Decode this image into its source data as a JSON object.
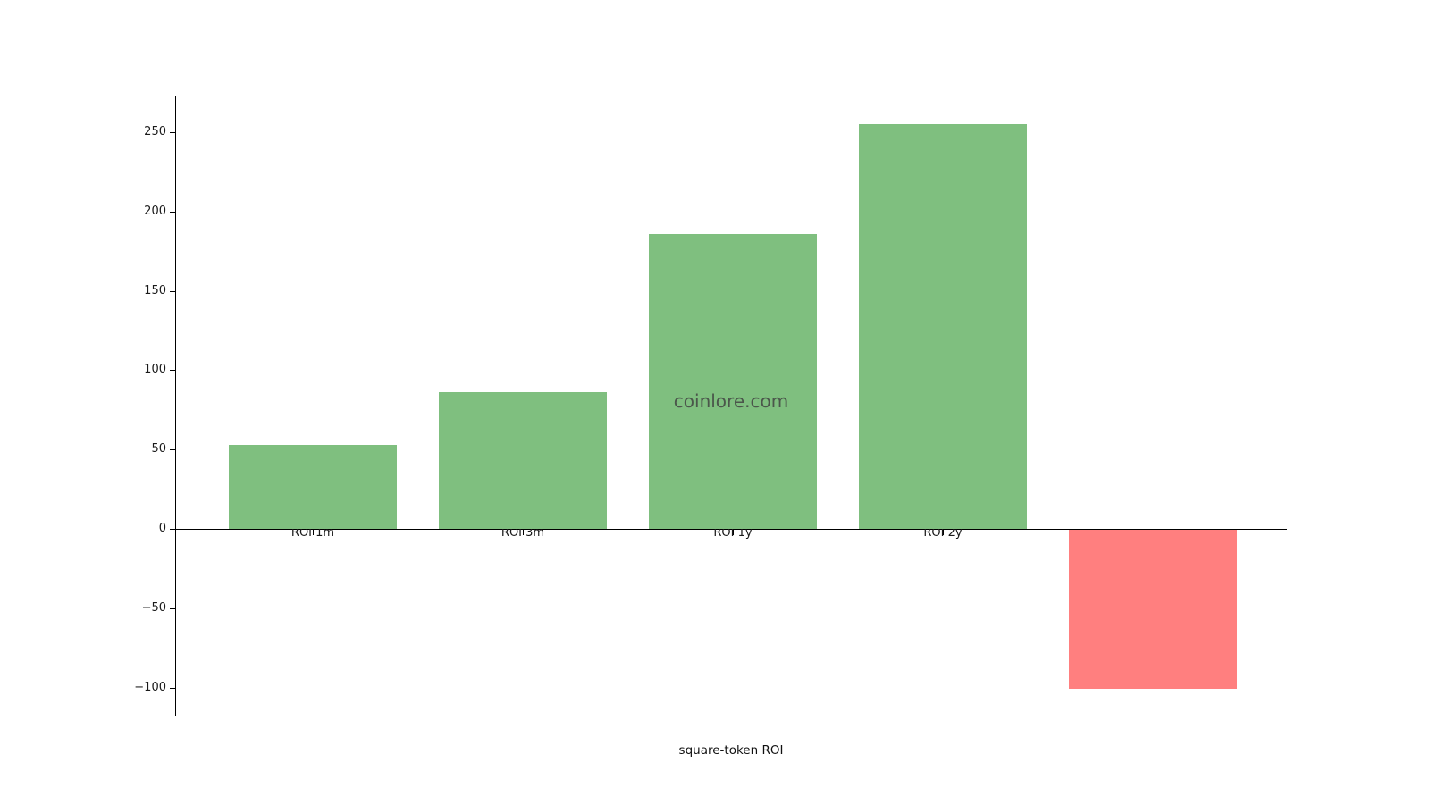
{
  "watermark": {
    "text": "coinlore.com",
    "color": "#404040"
  },
  "chart_data": {
    "type": "bar",
    "title": "square-token ROI",
    "categories": [
      "ROI 1m",
      "ROI 3m",
      "ROI 1y",
      "ROI 2y",
      ""
    ],
    "values": [
      53,
      86,
      186,
      255,
      -100
    ],
    "y_ticks": [
      250,
      200,
      150,
      100,
      50,
      0,
      -50,
      -100
    ],
    "y_tick_labels": [
      "250",
      "200",
      "150",
      "100",
      "50",
      "0",
      "−50",
      "−100"
    ],
    "ylim": [
      -118,
      273
    ],
    "xlabel": "",
    "ylabel": "",
    "grid": false,
    "legend_position": "none",
    "positive_color": "#7fbf7f",
    "negative_color": "#ff7f7f",
    "axis_color": "#000000",
    "background_color": "#ffffff"
  }
}
